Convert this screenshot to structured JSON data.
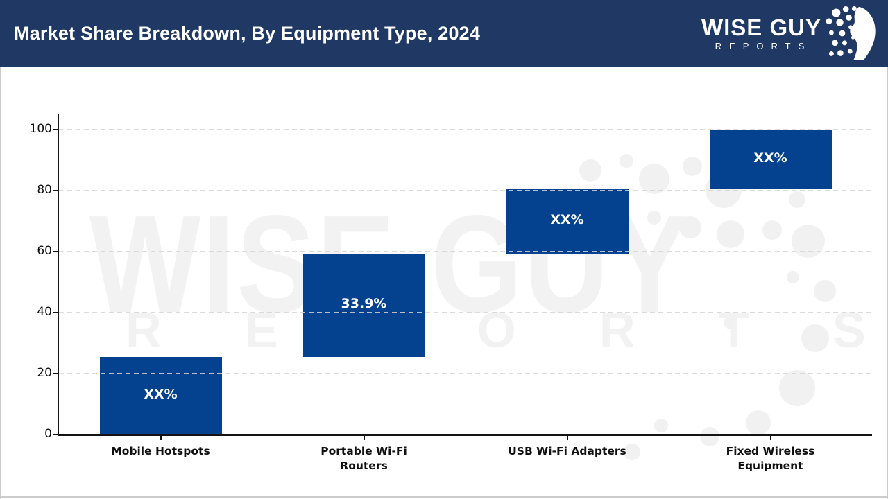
{
  "header": {
    "title": "Market Share Breakdown, By Equipment Type, 2024",
    "bg_color": "#1f3864",
    "logo": {
      "line1": "WISE GUY",
      "line2": "REPORTS"
    }
  },
  "watermark": {
    "line1": "WISE GUY",
    "line2": "R E P O R T S",
    "color": "#f2f2f2"
  },
  "chart_data": {
    "type": "bar",
    "subtype": "waterfall",
    "title": "Market Share Breakdown, By Equipment Type, 2024",
    "categories": [
      "Mobile Hotspots",
      "Portable Wi-Fi Routers",
      "USB Wi-Fi Adapters",
      "Fixed Wireless Equipment"
    ],
    "bars": [
      {
        "category": "Mobile Hotspots",
        "base": 0,
        "top": 25.5,
        "height_pct": 25.5,
        "label": "XX%"
      },
      {
        "category": "Portable Wi-Fi Routers",
        "base": 25.5,
        "top": 59.4,
        "height_pct": 33.9,
        "label": "33.9%"
      },
      {
        "category": "USB Wi-Fi Adapters",
        "base": 59.4,
        "top": 80.6,
        "height_pct": 21.2,
        "label": "XX%"
      },
      {
        "category": "Fixed Wireless Equipment",
        "base": 80.6,
        "top": 100,
        "height_pct": 19.4,
        "label": "XX%"
      }
    ],
    "xlabel": "",
    "ylabel": "",
    "yticks": [
      0,
      20,
      40,
      60,
      80,
      100
    ],
    "ylim": [
      0,
      105
    ],
    "grid": "horizontal-dashed",
    "legend": "none",
    "bar_color": "#04418f",
    "bar_label_color": "#ffffff",
    "axis_color": "#141414",
    "gridline_color": "#d5d5d5"
  }
}
